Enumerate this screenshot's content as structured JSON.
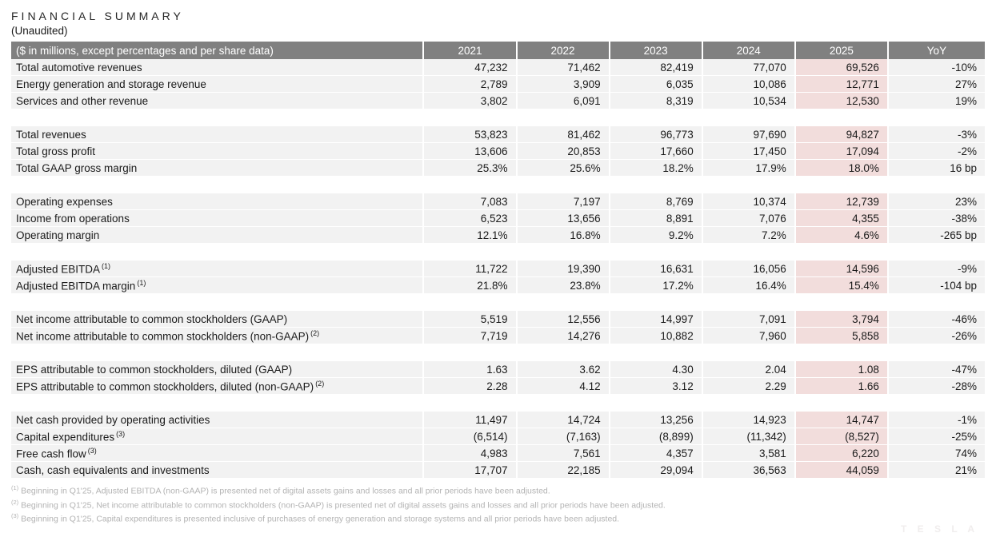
{
  "title": "FINANCIAL SUMMARY",
  "subtitle": "(Unaudited)",
  "watermark": "T E S L A",
  "colors": {
    "header_bg": "#808080",
    "row_bg": "#f2f2f2",
    "highlight_bg": "#f2dddc",
    "footnote_color": "#b3b3b3"
  },
  "table": {
    "header_label": "($ in millions, except percentages and per share data)",
    "columns": [
      "2021",
      "2022",
      "2023",
      "2024",
      "2025",
      "YoY"
    ],
    "groups": [
      {
        "rows": [
          {
            "label": "Total automotive revenues",
            "sup": "",
            "values": [
              "47,232",
              "71,462",
              "82,419",
              "77,070",
              "69,526",
              "-10%"
            ]
          },
          {
            "label": "Energy generation and storage revenue",
            "sup": "",
            "values": [
              "2,789",
              "3,909",
              "6,035",
              "10,086",
              "12,771",
              "27%"
            ]
          },
          {
            "label": "Services and other revenue",
            "sup": "",
            "values": [
              "3,802",
              "6,091",
              "8,319",
              "10,534",
              "12,530",
              "19%"
            ]
          }
        ]
      },
      {
        "rows": [
          {
            "label": "Total revenues",
            "sup": "",
            "values": [
              "53,823",
              "81,462",
              "96,773",
              "97,690",
              "94,827",
              "-3%"
            ]
          },
          {
            "label": "Total gross profit",
            "sup": "",
            "values": [
              "13,606",
              "20,853",
              "17,660",
              "17,450",
              "17,094",
              "-2%"
            ]
          },
          {
            "label": "Total GAAP gross margin",
            "sup": "",
            "values": [
              "25.3%",
              "25.6%",
              "18.2%",
              "17.9%",
              "18.0%",
              "16 bp"
            ]
          }
        ]
      },
      {
        "rows": [
          {
            "label": "Operating expenses",
            "sup": "",
            "values": [
              "7,083",
              "7,197",
              "8,769",
              "10,374",
              "12,739",
              "23%"
            ]
          },
          {
            "label": "Income from operations",
            "sup": "",
            "values": [
              "6,523",
              "13,656",
              "8,891",
              "7,076",
              "4,355",
              "-38%"
            ]
          },
          {
            "label": "Operating margin",
            "sup": "",
            "values": [
              "12.1%",
              "16.8%",
              "9.2%",
              "7.2%",
              "4.6%",
              "-265 bp"
            ]
          }
        ]
      },
      {
        "rows": [
          {
            "label": "Adjusted EBITDA",
            "sup": "(1)",
            "values": [
              "11,722",
              "19,390",
              "16,631",
              "16,056",
              "14,596",
              "-9%"
            ]
          },
          {
            "label": "Adjusted EBITDA margin",
            "sup": "(1)",
            "values": [
              "21.8%",
              "23.8%",
              "17.2%",
              "16.4%",
              "15.4%",
              "-104 bp"
            ]
          }
        ]
      },
      {
        "rows": [
          {
            "label": "Net income attributable to common stockholders (GAAP)",
            "sup": "",
            "values": [
              "5,519",
              "12,556",
              "14,997",
              "7,091",
              "3,794",
              "-46%"
            ]
          },
          {
            "label": "Net income attributable to common stockholders (non-GAAP)",
            "sup": "(2)",
            "values": [
              "7,719",
              "14,276",
              "10,882",
              "7,960",
              "5,858",
              "-26%"
            ]
          }
        ]
      },
      {
        "rows": [
          {
            "label": "EPS attributable to common stockholders, diluted (GAAP)",
            "sup": "",
            "values": [
              "1.63",
              "3.62",
              "4.30",
              "2.04",
              "1.08",
              "-47%"
            ]
          },
          {
            "label": "EPS attributable to common stockholders, diluted (non-GAAP)",
            "sup": "(2)",
            "values": [
              "2.28",
              "4.12",
              "3.12",
              "2.29",
              "1.66",
              "-28%"
            ]
          }
        ]
      },
      {
        "rows": [
          {
            "label": "Net cash provided by operating activities",
            "sup": "",
            "values": [
              "11,497",
              "14,724",
              "13,256",
              "14,923",
              "14,747",
              "-1%"
            ]
          },
          {
            "label": "Capital expenditures",
            "sup": "(3)",
            "values": [
              "(6,514)",
              "(7,163)",
              "(8,899)",
              "(11,342)",
              "(8,527)",
              "-25%"
            ]
          },
          {
            "label": "Free cash flow",
            "sup": "(3)",
            "values": [
              "4,983",
              "7,561",
              "4,357",
              "3,581",
              "6,220",
              "74%"
            ]
          },
          {
            "label": "Cash, cash equivalents and investments",
            "sup": "",
            "values": [
              "17,707",
              "22,185",
              "29,094",
              "36,563",
              "44,059",
              "21%"
            ]
          }
        ]
      }
    ]
  },
  "footnotes": [
    {
      "marker": "(1)",
      "text": "Beginning in Q1'25, Adjusted EBITDA (non-GAAP) is presented net of digital assets gains and losses and all prior periods have been adjusted."
    },
    {
      "marker": "(2)",
      "text": "Beginning in Q1'25, Net income attributable to common stockholders (non-GAAP) is presented net of digital assets gains and losses and all prior periods have been adjusted."
    },
    {
      "marker": "(3)",
      "text": "Beginning in Q1'25, Capital expenditures is presented inclusive of purchases of energy generation and storage systems and all prior periods have been adjusted."
    }
  ]
}
